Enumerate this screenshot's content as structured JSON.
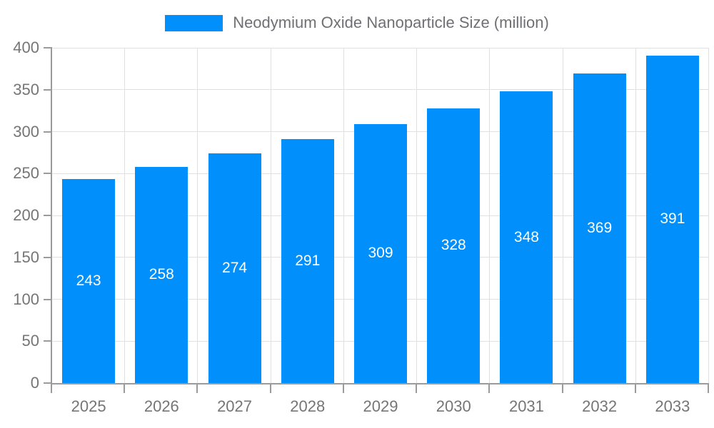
{
  "legend": {
    "label": "Neodymium Oxide Nanoparticle Size (million)"
  },
  "chart_data": {
    "type": "bar",
    "title": "Neodymium Oxide Nanoparticle Size (million)",
    "series_name": "Neodymium Oxide Nanoparticle Size (million)",
    "categories": [
      "2025",
      "2026",
      "2027",
      "2028",
      "2029",
      "2030",
      "2031",
      "2032",
      "2033"
    ],
    "values": [
      243,
      258,
      274,
      291,
      309,
      328,
      348,
      369,
      391
    ],
    "xlabel": "",
    "ylabel": "",
    "ylim": [
      0,
      400
    ],
    "yticks": [
      0,
      50,
      100,
      150,
      200,
      250,
      300,
      350,
      400
    ],
    "grid": true,
    "legend_position": "top-center",
    "data_labels": "inside-center",
    "colors": {
      "bar": "#008FFB",
      "grid": "#e0e0e0",
      "axis": "#9b9b9b",
      "axis_text": "#757575",
      "legend_text": "#6e7073",
      "value_text": "#ffffff",
      "background": "#ffffff"
    }
  }
}
